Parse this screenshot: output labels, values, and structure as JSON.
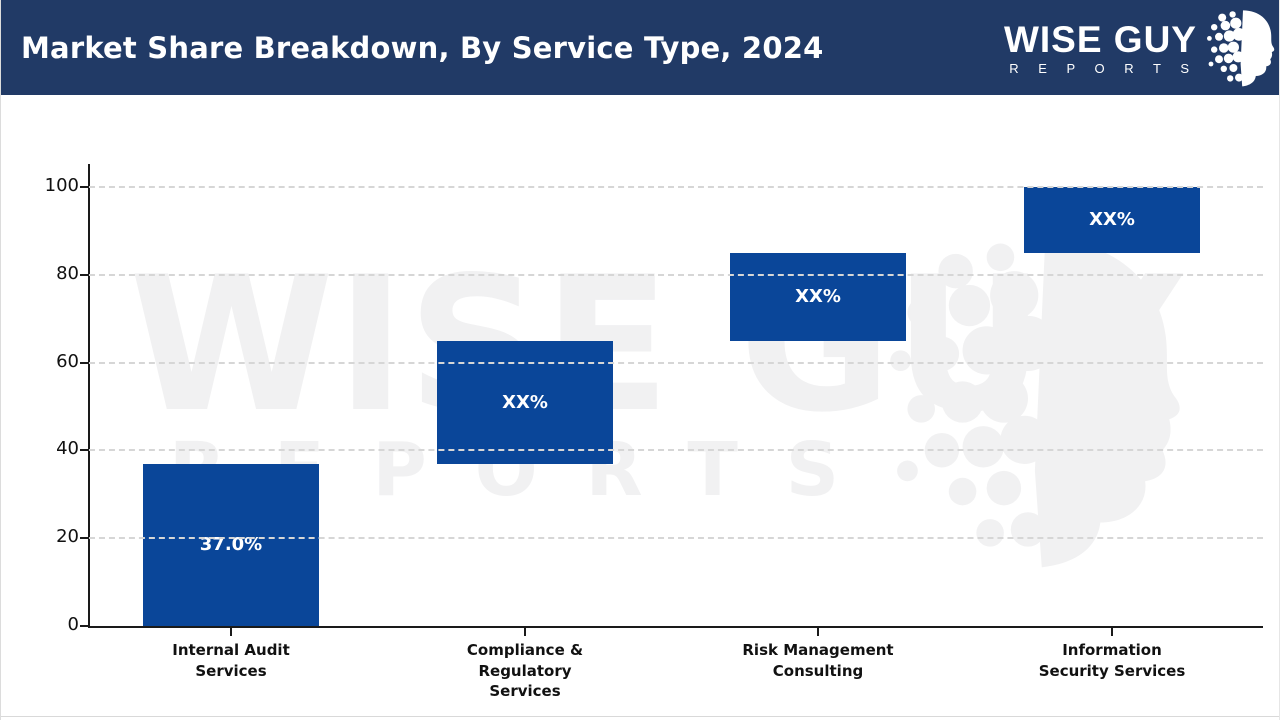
{
  "header": {
    "title": "Market Share Breakdown, By Service Type, 2024",
    "bg_color": "#213a66",
    "logo": {
      "line1": "WISE GUY",
      "line2": "R E P O R T S"
    }
  },
  "watermark": {
    "line1": "WISE GUY",
    "line2": "REPORTS"
  },
  "chart_data": {
    "type": "bar",
    "subtype": "waterfall",
    "title": "Market Share Breakdown, By Service Type, 2024",
    "categories": [
      "Internal Audit Services",
      "Compliance & Regulatory Services",
      "Risk Management Consulting",
      "Information Security Services"
    ],
    "categories_multiline": [
      "Internal Audit\nServices",
      "Compliance &\nRegulatory\nServices",
      "Risk Management\nConsulting",
      "Information\nSecurity Services"
    ],
    "segments": [
      {
        "start": 0,
        "end": 37,
        "label": "37.0%"
      },
      {
        "start": 37,
        "end": 65,
        "label": "XX%"
      },
      {
        "start": 65,
        "end": 85,
        "label": "XX%"
      },
      {
        "start": 85,
        "end": 100,
        "label": "XX%"
      }
    ],
    "xlabel": "",
    "ylabel": "",
    "ylim": [
      0,
      100
    ],
    "yticks": [
      0,
      20,
      40,
      60,
      80,
      100
    ],
    "grid": "horizontal-dashed-over-bars",
    "legend": "none",
    "bar_color": "#0a4699",
    "bar_label_color": "#ffffff"
  }
}
